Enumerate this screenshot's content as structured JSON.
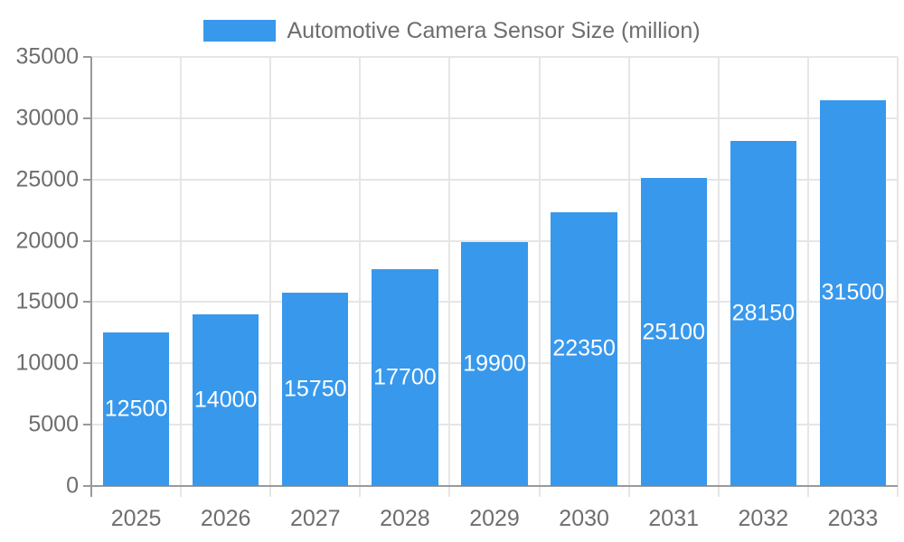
{
  "chart_data": {
    "type": "bar",
    "title": "Automotive Camera Sensor Size (million)",
    "categories": [
      "2025",
      "2026",
      "2027",
      "2028",
      "2029",
      "2030",
      "2031",
      "2032",
      "2033"
    ],
    "values": [
      12500,
      14000,
      15750,
      17700,
      19900,
      22350,
      25100,
      28150,
      31500
    ],
    "value_labels": [
      "12500",
      "14000",
      "15750",
      "17700",
      "19900",
      "22350",
      "25100",
      "28150",
      "31500"
    ],
    "xlabel": "",
    "ylabel": "",
    "ylim": [
      0,
      35000
    ],
    "ytick_step": 5000,
    "ytick_labels": [
      "0",
      "5000",
      "10000",
      "15000",
      "20000",
      "25000",
      "30000",
      "35000"
    ],
    "legend_position": "top",
    "grid": true,
    "colors": {
      "bar": "#3898EC",
      "bar_label_text": "#ffffff",
      "axis_text": "#6e6e6e",
      "legend_text": "#6e6e6e",
      "gridline": "#e6e6e6",
      "axis_line": "#999999"
    }
  }
}
